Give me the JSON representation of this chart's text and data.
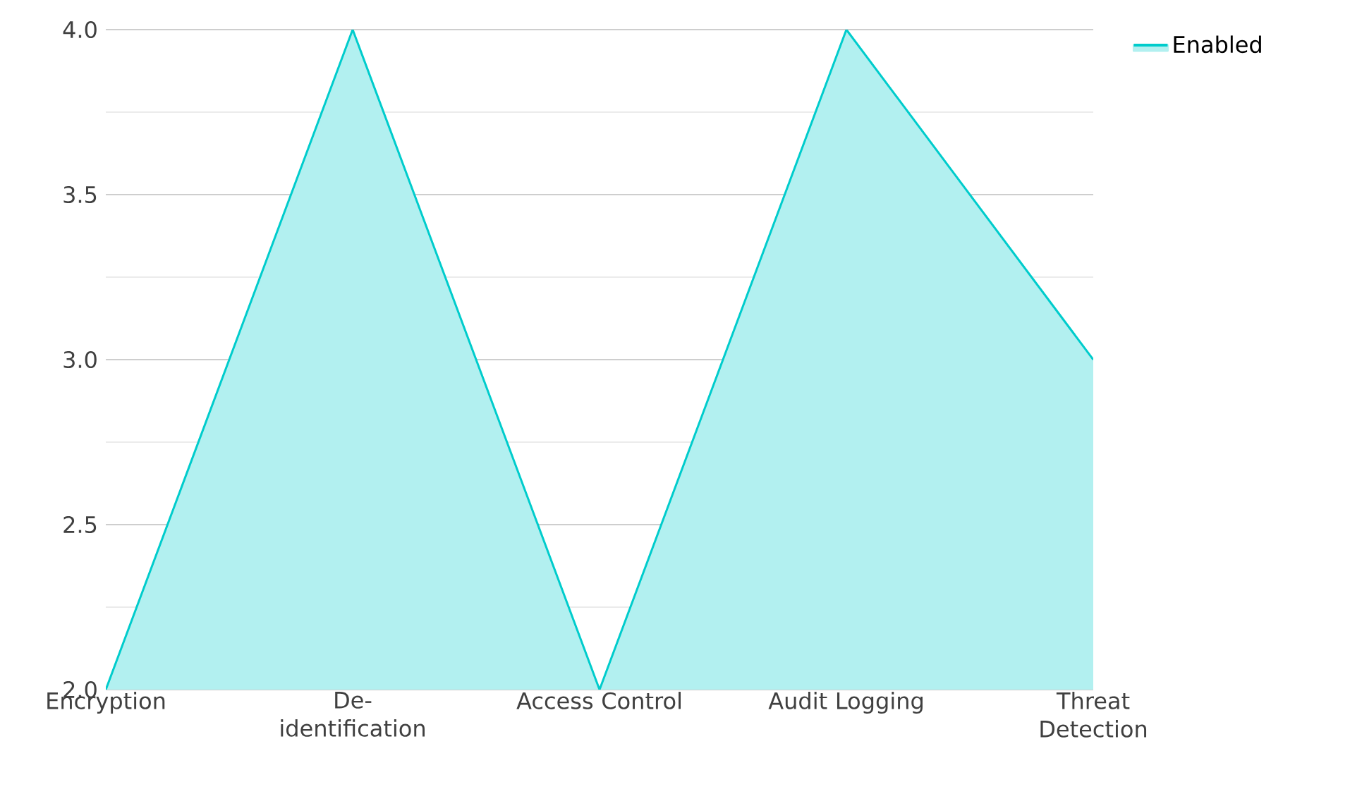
{
  "chart_data": {
    "type": "area",
    "categories": [
      "Encryption",
      "De-identification",
      "Access Control",
      "Audit Logging",
      "Threat Detection"
    ],
    "series": [
      {
        "name": "Enabled",
        "color": "#00cccc",
        "values": [
          2,
          4,
          2,
          4,
          3
        ]
      }
    ],
    "ylim": [
      2,
      4
    ],
    "yticks": [
      {
        "value": 2,
        "label": "2.0"
      },
      {
        "value": 2.5,
        "label": "2.5"
      },
      {
        "value": 3,
        "label": "3.0"
      },
      {
        "value": 3.5,
        "label": "3.5"
      },
      {
        "value": 4,
        "label": "4.0"
      }
    ],
    "grid": "y",
    "legend": "top right"
  }
}
